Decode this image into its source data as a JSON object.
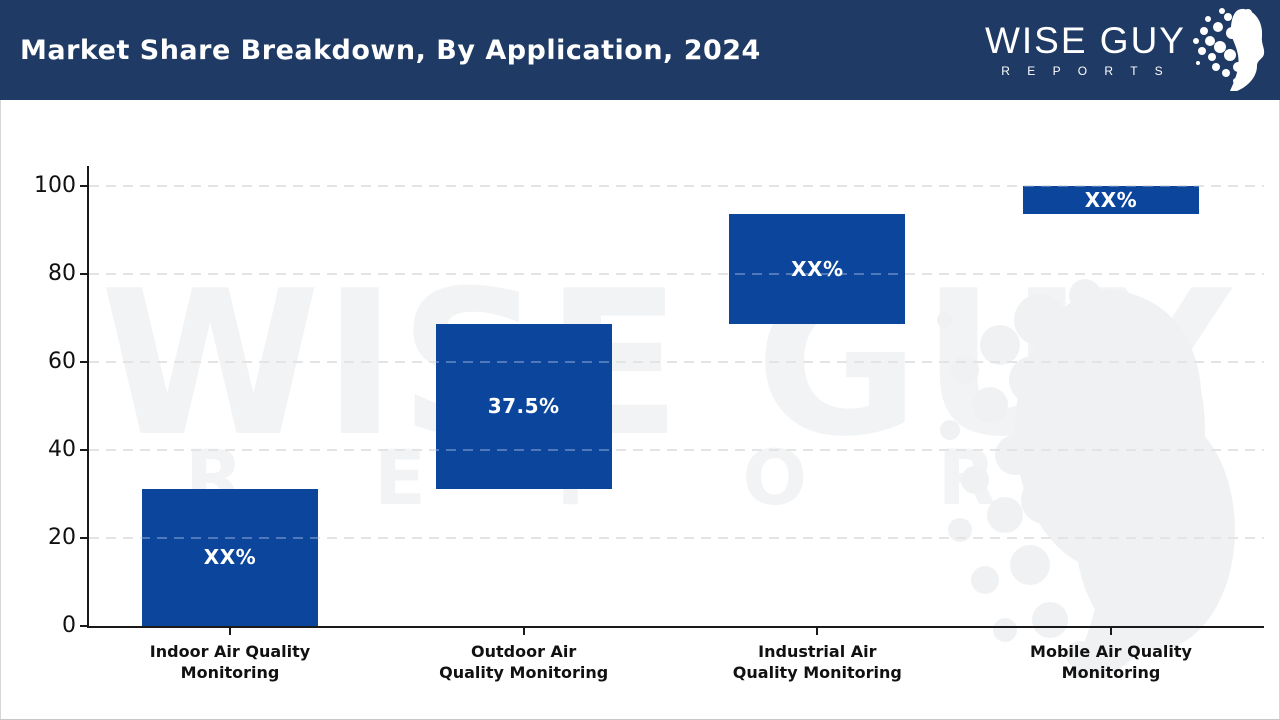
{
  "page": {
    "background": "#ffffff",
    "border_color": "#c9c9c9"
  },
  "header": {
    "background": "#1F3A64",
    "title": "Market Share Breakdown, By Application, 2024",
    "title_color": "#ffffff",
    "logo": {
      "name": "WISE GUY",
      "sub": "R E P O R T S"
    }
  },
  "watermark": {
    "line1": "WISE GUY",
    "line2": "R E P O R T S"
  },
  "chart_data": {
    "type": "bar",
    "subtype": "waterfall",
    "title": "Market Share Breakdown, By Application, 2024",
    "categories": [
      [
        "Indoor Air Quality",
        "Monitoring"
      ],
      [
        "Outdoor Air",
        "Quality Monitoring"
      ],
      [
        "Industrial Air",
        "Quality Monitoring"
      ],
      [
        "Mobile Air Quality",
        "Monitoring"
      ]
    ],
    "segments": [
      {
        "category": "Indoor Air Quality Monitoring",
        "start": 0,
        "end": 31.25,
        "label": "XX%"
      },
      {
        "category": "Outdoor Air Quality Monitoring",
        "start": 31.25,
        "end": 68.75,
        "label": "37.5%"
      },
      {
        "category": "Industrial Air Quality Monitoring",
        "start": 68.75,
        "end": 93.75,
        "label": "XX%"
      },
      {
        "category": "Mobile Air Quality Monitoring",
        "start": 93.75,
        "end": 100,
        "label": "XX%"
      }
    ],
    "yticks": [
      0,
      20,
      40,
      60,
      80,
      100
    ],
    "ylim": [
      0,
      104
    ],
    "grid": "horizontal-dashed",
    "grid_color": "#d9d9d9",
    "axis_color": "#1a1a1a",
    "bar_color": "#0B459C",
    "bar_label_color": "#ffffff",
    "legend": null
  }
}
